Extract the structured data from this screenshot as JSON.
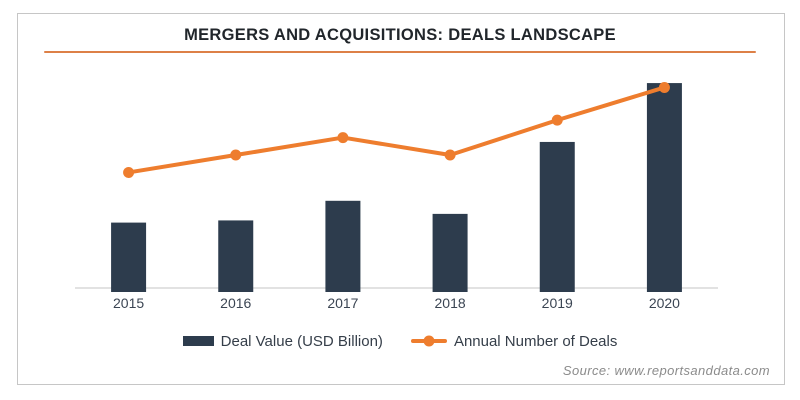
{
  "page": {
    "background": "#ffffff",
    "frame_border_color": "#c6c6c6"
  },
  "header": {
    "title": "MERGERS AND ACQUISITIONS: DEALS LANDSCAPE",
    "underline_color": "#dd8047"
  },
  "legend": {
    "items": [
      {
        "label": "Deal Value (USD Billion)",
        "swatch": "bar",
        "color": "#2d3c4d"
      },
      {
        "label": "Annual Number of Deals",
        "swatch": "line-dot",
        "color": "#ee7d2e"
      }
    ]
  },
  "footer": {
    "source": "Source: www.reportsanddata.com"
  },
  "chart_data": {
    "type": "bar",
    "subtype": "bar-line-combo",
    "title": "MERGERS AND ACQUISITIONS: DEALS LANDSCAPE",
    "categories": [
      "2015",
      "2016",
      "2017",
      "2018",
      "2019",
      "2020"
    ],
    "series": [
      {
        "name": "Deal Value (USD Billion)",
        "type": "bar",
        "color": "#2d3c4d",
        "values": [
          30,
          31,
          40,
          34,
          67,
          94
        ]
      },
      {
        "name": "Annual Number of Deals",
        "type": "line",
        "color": "#ee7d2e",
        "values": [
          53,
          61,
          69,
          61,
          77,
          92
        ]
      }
    ],
    "xlabel": "",
    "ylabel": "",
    "ylim": [
      0,
      100
    ],
    "units_note": "no y-axis ticks shown in source; values estimated as percent of plot height",
    "grid": false,
    "axis_line_color": "#d9d9d9",
    "tick_label_color": "#3b4553",
    "legend_position": "bottom"
  }
}
